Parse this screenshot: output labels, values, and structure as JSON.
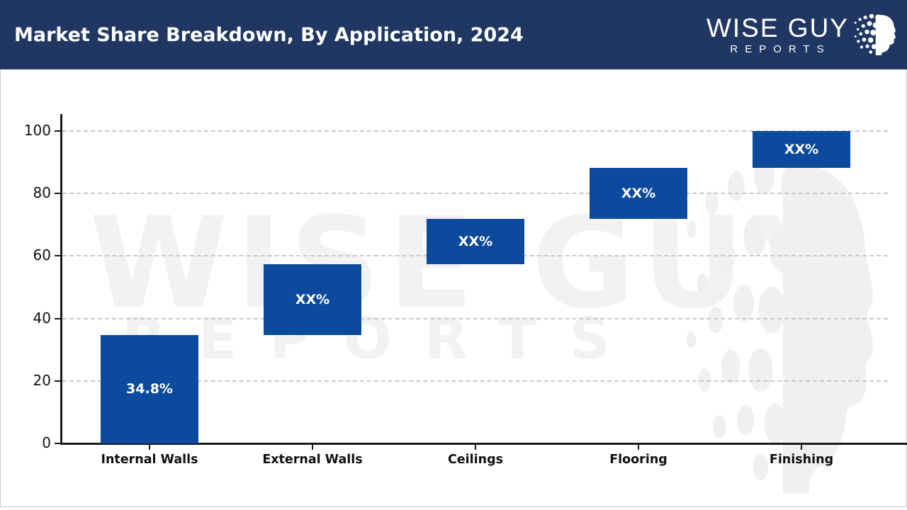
{
  "header": {
    "title": "Market Share Breakdown, By Application, 2024",
    "background_color": "#203764",
    "logo": {
      "line1": "WISE GUY",
      "line2": "REPORTS"
    }
  },
  "watermark": {
    "line1": "WISE GUY",
    "line2": "REPORTS"
  },
  "chart_data": {
    "type": "bar",
    "subtype": "waterfall",
    "title": "Market Share Breakdown, By Application, 2024",
    "categories": [
      "Internal Walls",
      "External Walls",
      "Ceilings",
      "Flooring",
      "Finishing"
    ],
    "segments": [
      {
        "category": "Internal Walls",
        "start": 0,
        "end": 34.8,
        "label": "34.8%"
      },
      {
        "category": "External Walls",
        "start": 34.8,
        "end": 57.3,
        "label": "XX%"
      },
      {
        "category": "Ceilings",
        "start": 57.3,
        "end": 72.0,
        "label": "XX%"
      },
      {
        "category": "Flooring",
        "start": 72.0,
        "end": 88.2,
        "label": "XX%"
      },
      {
        "category": "Finishing",
        "start": 88.2,
        "end": 100.0,
        "label": "XX%"
      }
    ],
    "xlabel": "",
    "ylabel": "",
    "yticks": [
      0,
      20,
      40,
      60,
      80,
      100
    ],
    "ylim": [
      0,
      105
    ],
    "grid": "horizontal-dashed",
    "legend": "none",
    "bar_color": "#0C4A9E",
    "bar_label_color": "#FFFFFF",
    "axis_color": "#1A1A1A",
    "gridline_color": "#C9C9C9",
    "tick_label_color": "#111111"
  }
}
